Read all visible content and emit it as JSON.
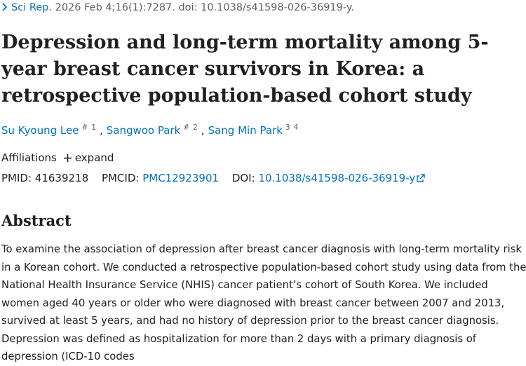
{
  "citation": {
    "journal": "Sci Rep.",
    "details": "2026 Feb 4;16(1):7287. doi: 10.1038/s41598-026-36919-y."
  },
  "title": "Depression and long-term mortality among 5-year breast cancer survivors in Korea: a retrospective population-based cohort study",
  "authors": [
    {
      "name": "Su Kyoung Lee",
      "sup": [
        "#",
        "1"
      ],
      "separator": ","
    },
    {
      "name": "Sangwoo Park",
      "sup": [
        "#",
        "2"
      ],
      "separator": ","
    },
    {
      "name": "Sang Min Park",
      "sup": [
        "3",
        "4"
      ]
    }
  ],
  "affiliations": {
    "label": "Affiliations",
    "expand": "expand"
  },
  "identifiers": {
    "pmid": {
      "label": "PMID:",
      "value": "41639218"
    },
    "pmcid": {
      "label": "PMCID:",
      "value": "PMC12923901"
    },
    "doi": {
      "label": "DOI:",
      "value": "10.1038/s41598-026-36919-y"
    }
  },
  "abstract": {
    "heading": "Abstract",
    "text": "To examine the association of depression after breast cancer diagnosis with long-term mortality risk in a Korean cohort. We conducted a retrospective population-based cohort study using data from the National Health Insurance Service (NHIS) cancer patient’s cohort of South Korea. We included women aged 40 years or older who were diagnosed with breast cancer between 2007 and 2013, survived at least 5 years, and had no history of depression prior to the breast cancer diagnosis. Depression was defined as hospitalization for more than 2 days with a primary diagnosis of depression (ICD-10 codes"
  }
}
